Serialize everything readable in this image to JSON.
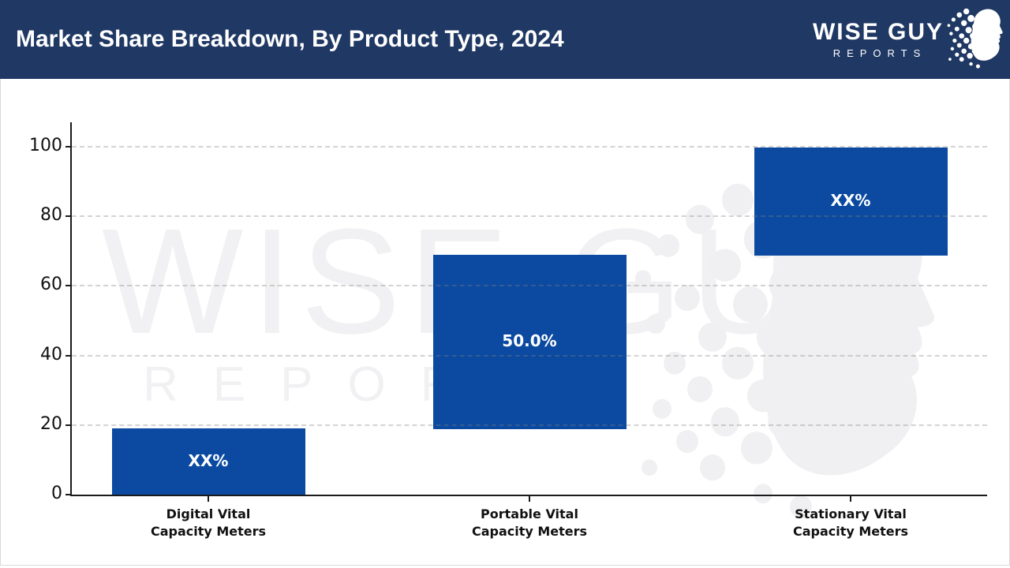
{
  "header": {
    "title": "Market Share Breakdown, By Product Type, 2024",
    "logo": {
      "name": "WISE GUY",
      "sub": "REPORTS"
    }
  },
  "watermark": {
    "name": "WISE GUY",
    "sub": "REPORTS"
  },
  "colors": {
    "header_bg": "#1f3864",
    "bar": "#0b4aa0",
    "axis": "#1a1a1a",
    "gridline": "rgba(130,130,130,0.35)",
    "watermark": "#f1f1f3",
    "body_border": "#d9d9d9",
    "bar_label_text": "#ffffff",
    "title_text": "#ffffff"
  },
  "chart_data": {
    "type": "bar",
    "subtype": "floating-waterfall-segments",
    "title": "Market Share Breakdown, By Product Type, 2024",
    "categories": [
      {
        "line1": "Digital Vital",
        "line2": "Capacity Meters"
      },
      {
        "line1": "Portable Vital",
        "line2": "Capacity Meters"
      },
      {
        "line1": "Stationary Vital",
        "line2": "Capacity Meters"
      }
    ],
    "segments": [
      {
        "category": "Digital Vital Capacity Meters",
        "start": 0,
        "end": 19.0,
        "label": "XX%"
      },
      {
        "category": "Portable Vital Capacity Meters",
        "start": 18.9,
        "end": 68.9,
        "label": "50.0%"
      },
      {
        "category": "Stationary Vital Capacity Meters",
        "start": 68.7,
        "end": 99.8,
        "label": "XX%"
      }
    ],
    "yticks": [
      0,
      20,
      40,
      60,
      80,
      100
    ],
    "ylim": [
      0,
      107
    ],
    "xlabel": "",
    "ylabel": "",
    "grid": "dashed-horizontal",
    "legend": false
  }
}
